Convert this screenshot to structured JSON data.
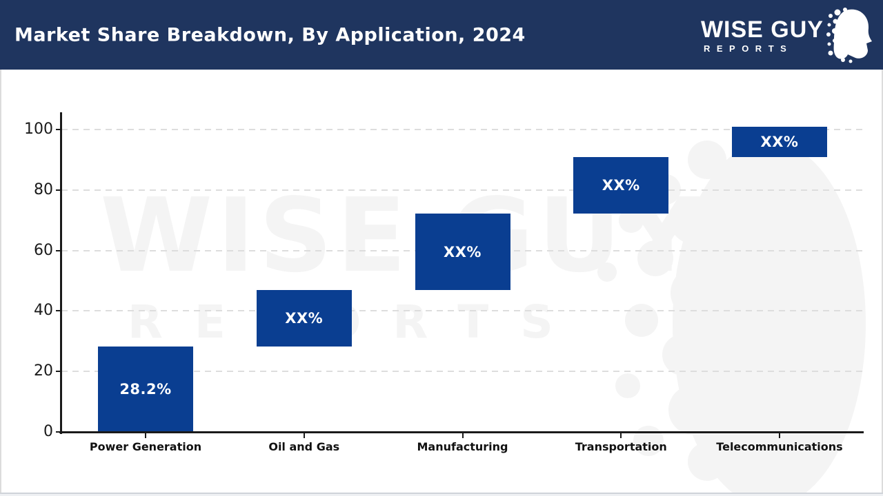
{
  "header": {
    "title": "Market Share Breakdown, By Application, 2024",
    "logo": {
      "line1": "WISE GUY",
      "line2": "REPORTS"
    }
  },
  "watermark": {
    "line1": "WISE GUY",
    "line2": "REPORTS"
  },
  "colors": {
    "header_bg": "#1f355f",
    "bar": "#0a3e91",
    "bar_label": "#ffffff",
    "grid": "#dddddd",
    "axis": "#1a1a1a",
    "watermark": "#f4f4f4"
  },
  "chart_data": {
    "type": "bar",
    "subtype": "waterfall",
    "title": "Market Share Breakdown, By Application, 2024",
    "categories": [
      "Power Generation",
      "Oil and Gas",
      "Manufacturing",
      "Transportation",
      "Telecommunications"
    ],
    "bars": [
      {
        "category": "Power Generation",
        "start": 0,
        "end": 28.2,
        "label": "28.2%"
      },
      {
        "category": "Oil and Gas",
        "start": 28.2,
        "end": 46.8,
        "label": "XX%"
      },
      {
        "category": "Manufacturing",
        "start": 46.8,
        "end": 72.1,
        "label": "XX%"
      },
      {
        "category": "Transportation",
        "start": 72.1,
        "end": 90.9,
        "label": "XX%"
      },
      {
        "category": "Telecommunications",
        "start": 90.9,
        "end": 100.9,
        "label": "XX%"
      }
    ],
    "yticks": [
      0,
      20,
      40,
      60,
      80,
      100
    ],
    "ylim": [
      0,
      105
    ],
    "xlabel": "",
    "ylabel": "",
    "grid": "horizontal-dashed",
    "legend": "none"
  }
}
